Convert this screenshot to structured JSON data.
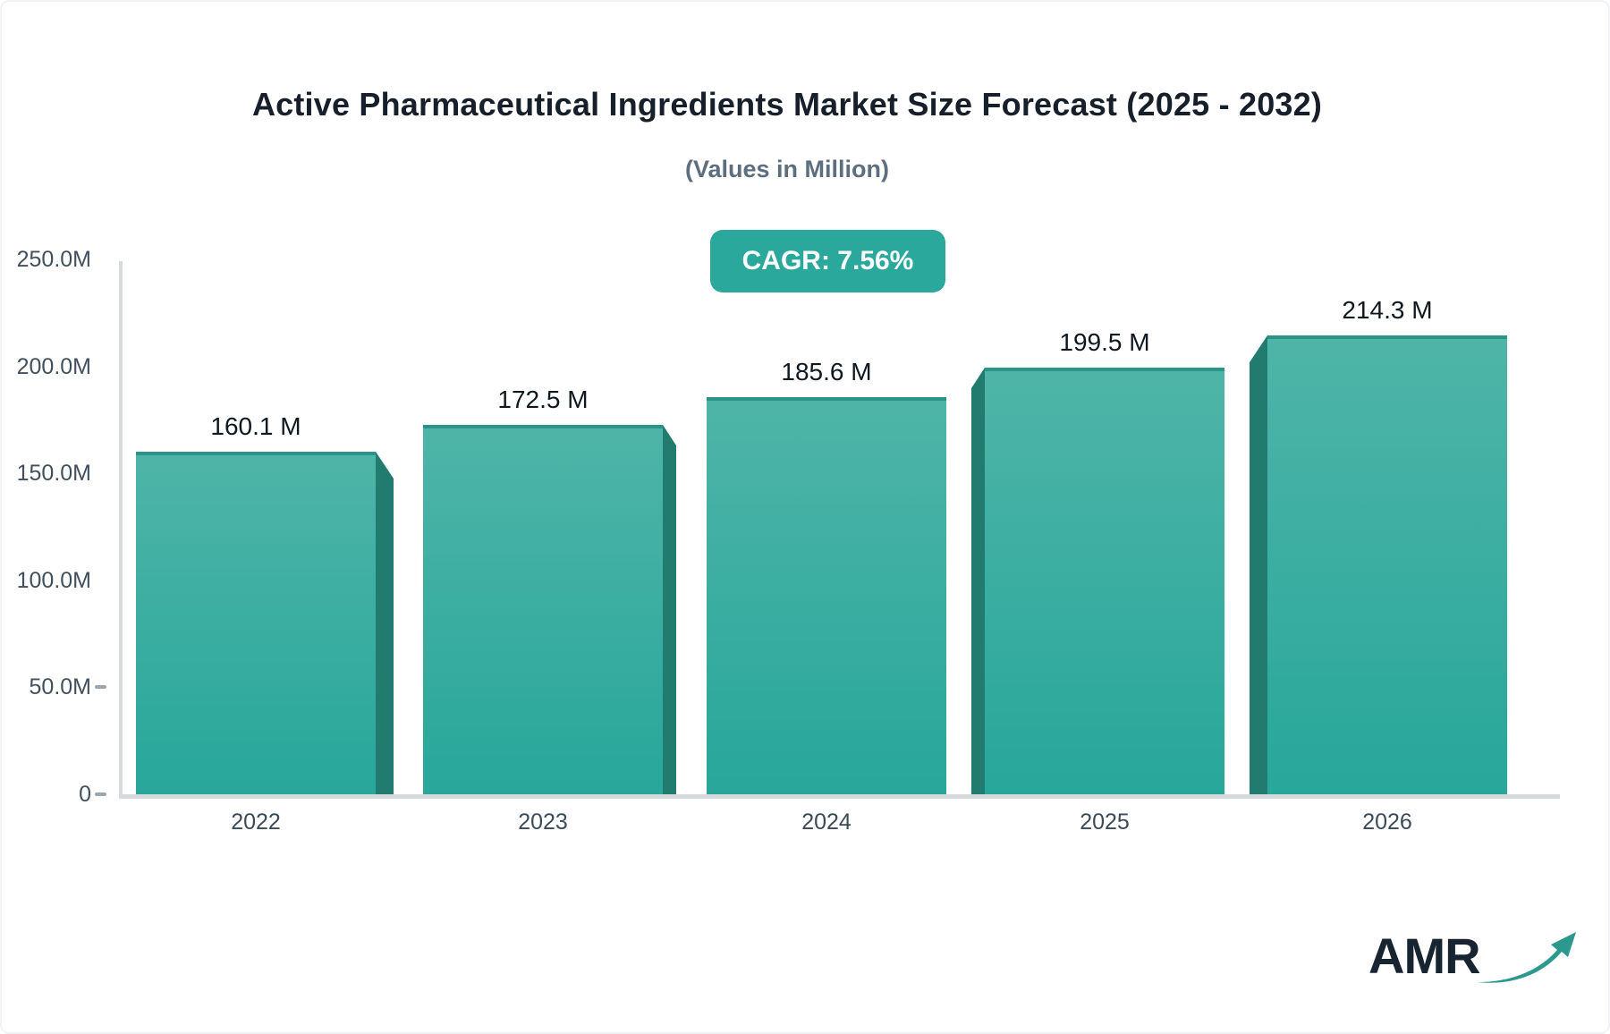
{
  "badge": {
    "label": "CAGR: 7.56%",
    "bg": "#2aa89b"
  },
  "logo": {
    "text": "AMR",
    "color": "#18242f",
    "arrow_color": "#2b998d"
  },
  "chart_data": {
    "type": "bar",
    "title": "Active Pharmaceutical Ingredients Market Size Forecast (2025 - 2032)",
    "subtitle": "(Values in Million)",
    "categories": [
      "2022",
      "2023",
      "2024",
      "2025",
      "2026"
    ],
    "values": [
      160.1,
      172.5,
      185.6,
      199.5,
      214.3
    ],
    "value_labels": [
      "160.1 M",
      "172.5 M",
      "185.6 M",
      "199.5 M",
      "214.3 M"
    ],
    "unit": "Million",
    "ylim": [
      0,
      250
    ],
    "ytick_values": [
      250,
      200,
      150,
      100,
      50,
      0
    ],
    "ytick_labels": [
      "250.0M",
      "200.0M",
      "150.0M",
      "100.0M",
      "50.0M",
      "0"
    ],
    "grid": false,
    "legend": false,
    "colors": {
      "front_top": "#4fb4a8",
      "front_bottom": "#27a79a",
      "side": "#217c6f",
      "top_edge": "#2b9488"
    }
  }
}
